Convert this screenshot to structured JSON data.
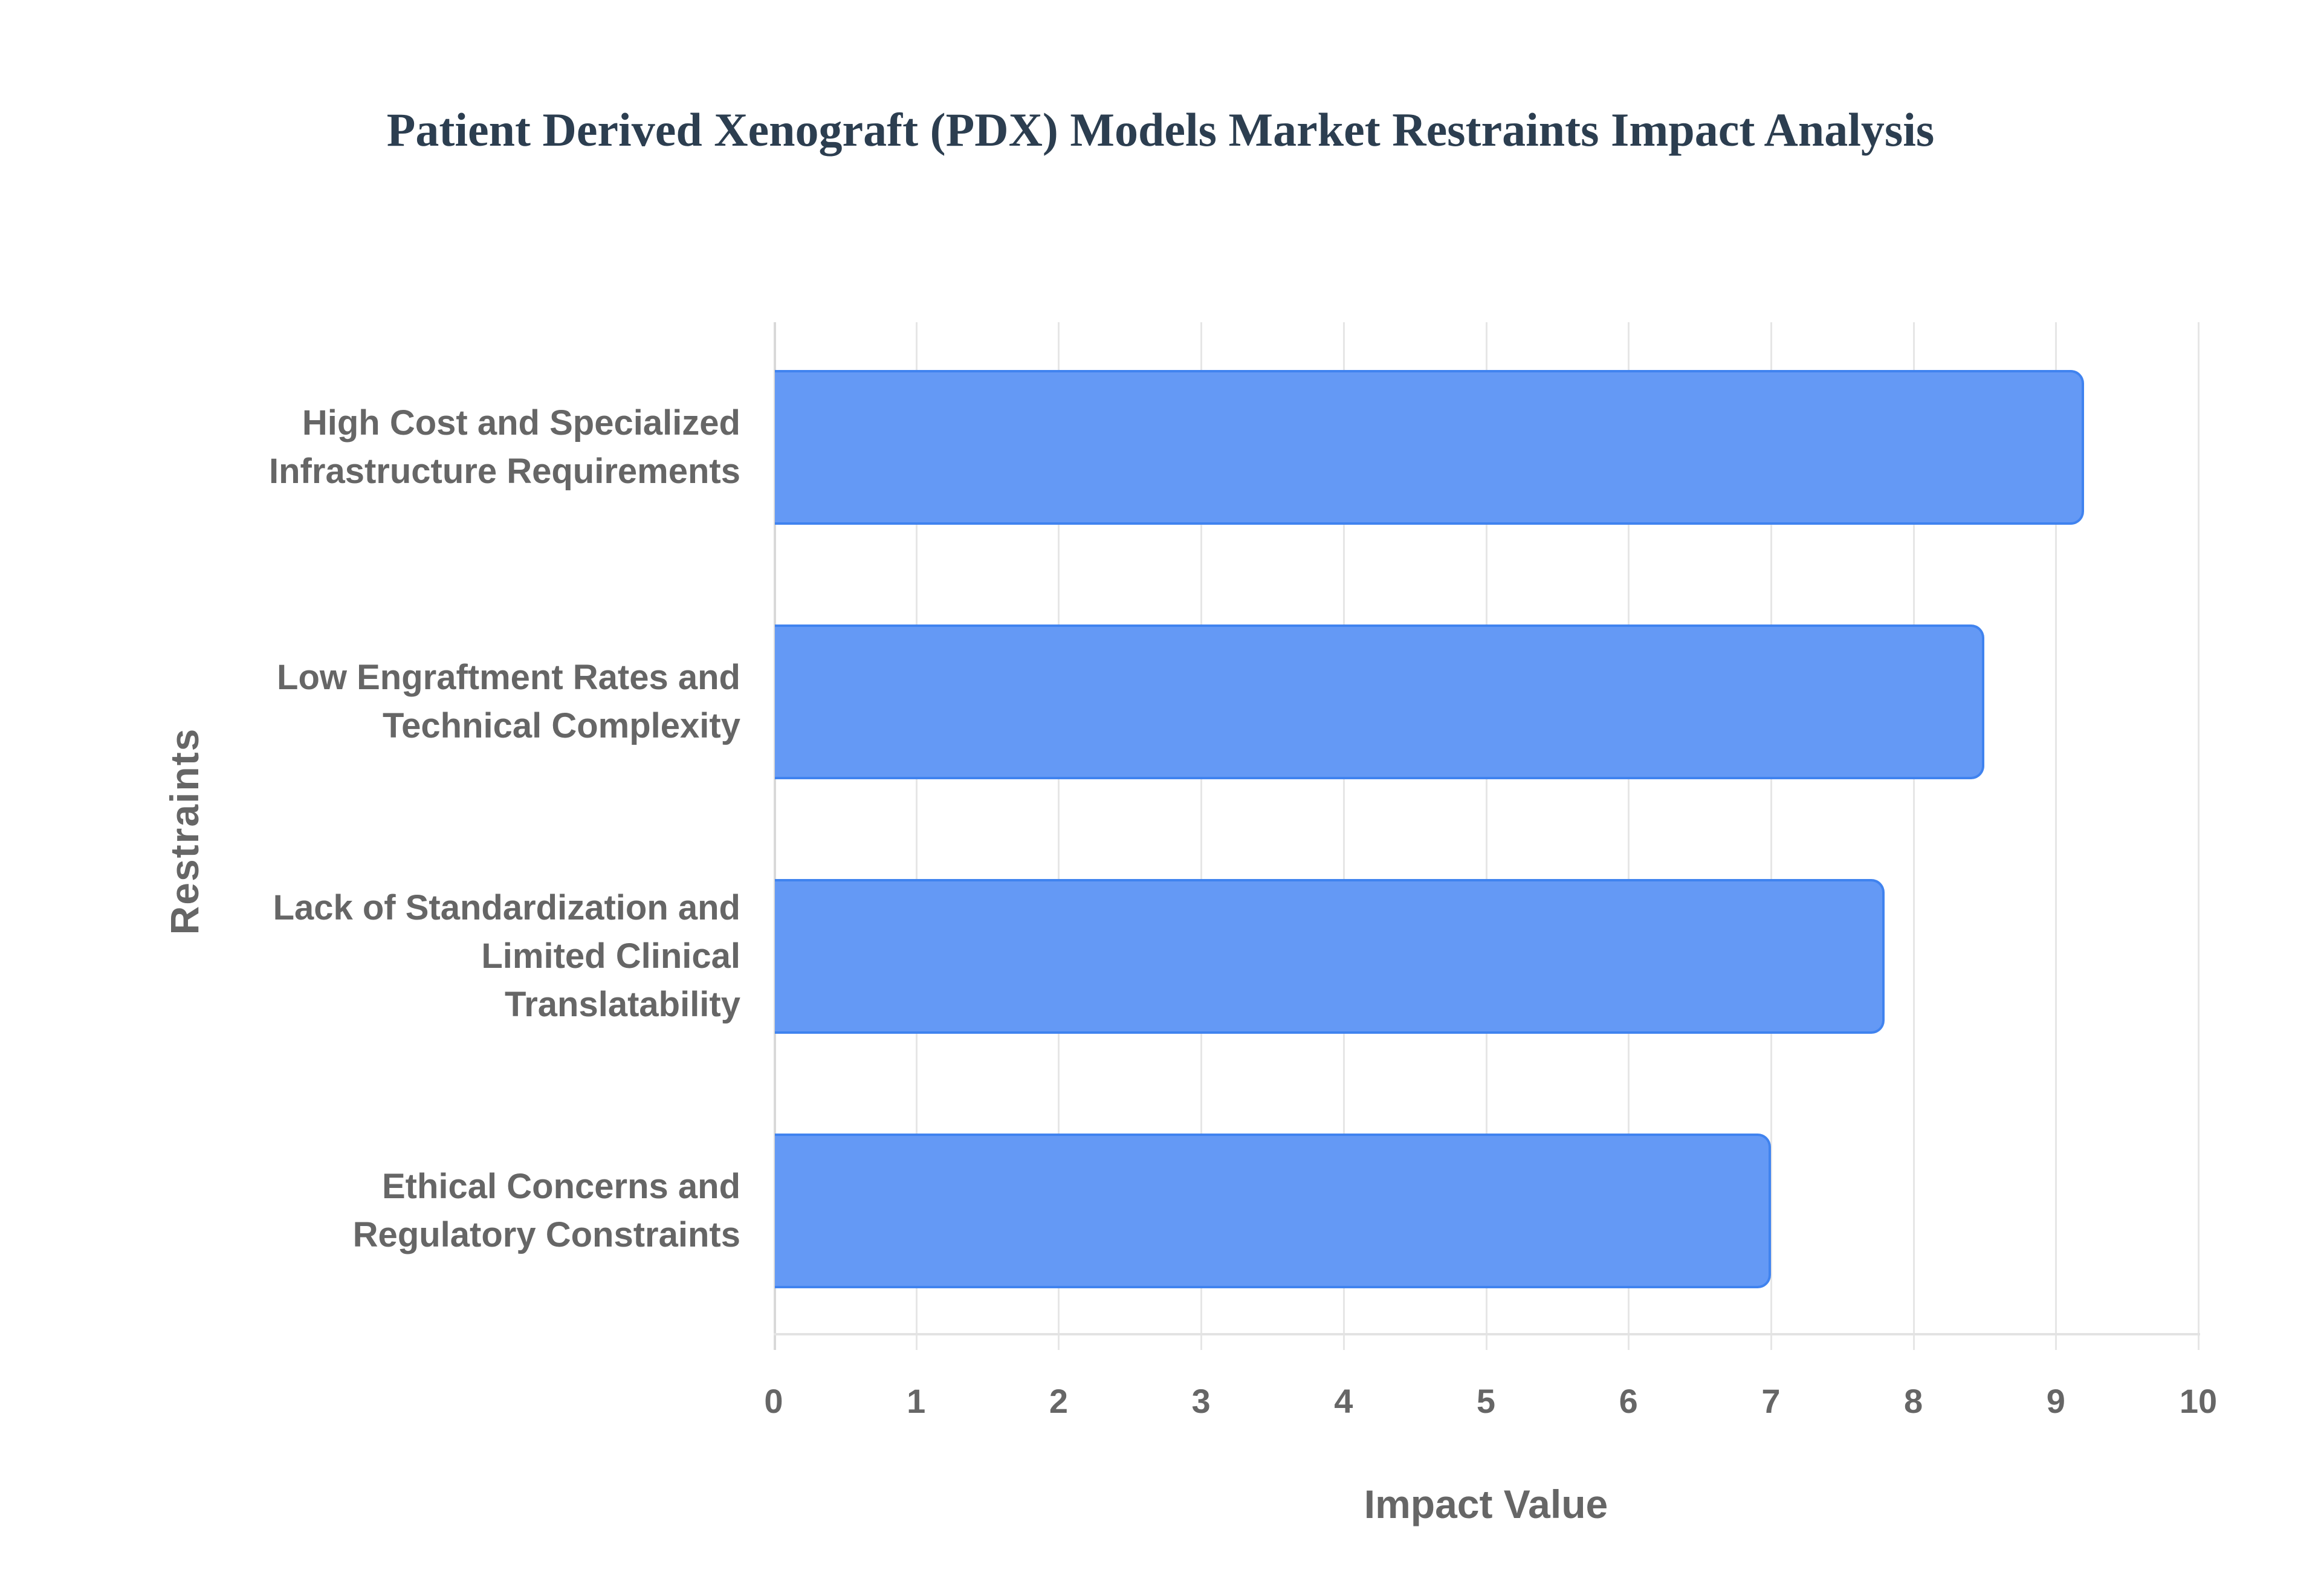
{
  "chart_data": {
    "type": "bar",
    "orientation": "horizontal",
    "title": "Patient Derived Xenograft (PDX) Models Market Restraints Impact Analysis",
    "xlabel": "Impact Value",
    "ylabel": "Restraints",
    "categories": [
      "High Cost and Specialized Infrastructure Requirements",
      "Low Engraftment Rates and Technical Complexity",
      "Lack of Standardization and Limited Clinical Translatability",
      "Ethical Concerns and Regulatory Constraints"
    ],
    "category_lines": [
      [
        "High Cost and Specialized",
        "Infrastructure Requirements"
      ],
      [
        "Low Engraftment Rates and",
        "Technical Complexity"
      ],
      [
        "Lack of Standardization and",
        "Limited Clinical",
        "Translatability"
      ],
      [
        "Ethical Concerns and",
        "Regulatory Constraints"
      ]
    ],
    "values": [
      9.2,
      8.5,
      7.8,
      7.0
    ],
    "xlim": [
      0,
      10
    ],
    "xticks": [
      "0",
      "1",
      "2",
      "3",
      "4",
      "5",
      "6",
      "7",
      "8",
      "9",
      "10"
    ],
    "grid": true,
    "legend": "none",
    "colors": {
      "bar_fill": "#6499f5",
      "bar_border": "#4083ef",
      "title": "#2c3e50",
      "labels": "#666666"
    }
  }
}
